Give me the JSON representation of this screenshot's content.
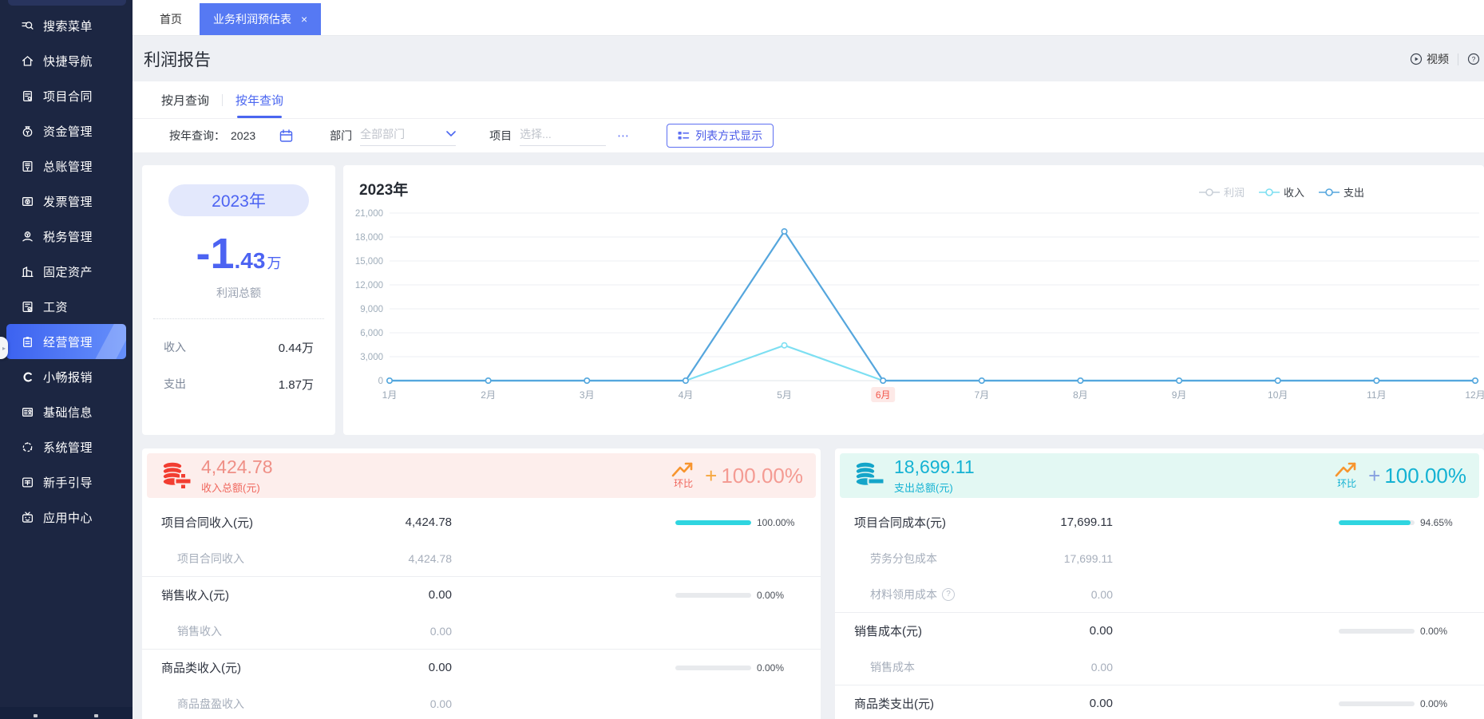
{
  "tabbar": {
    "home_tab": "首页",
    "active_tab": "业务利润预估表",
    "close": "×"
  },
  "page": {
    "title": "利润报告",
    "video_label": "视频",
    "help_label": "帮"
  },
  "sidebar": {
    "active": "经营管理",
    "items": [
      {
        "label": "搜索菜单",
        "icon": "search-menu-icon"
      },
      {
        "label": "快捷导航",
        "icon": "quick-nav-icon"
      },
      {
        "label": "项目合同",
        "icon": "project-contract-icon"
      },
      {
        "label": "资金管理",
        "icon": "funds-icon"
      },
      {
        "label": "总账管理",
        "icon": "general-ledger-icon"
      },
      {
        "label": "发票管理",
        "icon": "invoice-icon"
      },
      {
        "label": "税务管理",
        "icon": "tax-icon"
      },
      {
        "label": "固定资产",
        "icon": "fixed-assets-icon"
      },
      {
        "label": "工资",
        "icon": "salary-icon"
      },
      {
        "label": "经营管理",
        "icon": "operations-icon"
      },
      {
        "label": "小畅报销",
        "icon": "expense-claim-icon"
      },
      {
        "label": "基础信息",
        "icon": "basic-info-icon"
      },
      {
        "label": "系统管理",
        "icon": "system-icon"
      },
      {
        "label": "新手引导",
        "icon": "newbie-guide-icon"
      },
      {
        "label": "应用中心",
        "icon": "app-center-icon"
      }
    ]
  },
  "query_tabs": {
    "monthly": "按月查询",
    "yearly": "按年查询",
    "active": "按年查询"
  },
  "filters": {
    "year_label": "按年查询：",
    "year_value": "2023",
    "dept_label": "部门",
    "dept_placeholder": "全部部门",
    "project_label": "项目",
    "project_placeholder": "选择...",
    "project_more": "⋯",
    "list_view_button": "列表方式显示"
  },
  "summary": {
    "year_pill": "2023年",
    "profit_value": "-1",
    "profit_decimal": ".43",
    "profit_unit": "万",
    "profit_label": "利润总额",
    "income_label": "收入",
    "income_value": "0.44万",
    "expense_label": "支出",
    "expense_value": "1.87万"
  },
  "chart_data": {
    "type": "line",
    "title": "2023年",
    "categories": [
      "1月",
      "2月",
      "3月",
      "4月",
      "5月",
      "6月",
      "7月",
      "8月",
      "9月",
      "10月",
      "11月",
      "12月"
    ],
    "highlight_category": "6月",
    "highlight_color": "#f2584c",
    "xlabel": "",
    "ylabel": "",
    "ylim": [
      0,
      21000
    ],
    "y_ticks": [
      0,
      3000,
      6000,
      9000,
      12000,
      15000,
      18000,
      21000
    ],
    "grid": true,
    "legend_position": "top-right",
    "series": [
      {
        "name": "利润",
        "color": "#c9d0d8",
        "disabled": true,
        "values": null
      },
      {
        "name": "收入",
        "color": "#7ddff2",
        "disabled": false,
        "values": [
          0,
          0,
          0,
          0,
          4424.78,
          0,
          0,
          0,
          0,
          0,
          0,
          0
        ]
      },
      {
        "name": "支出",
        "color": "#55a6dd",
        "disabled": false,
        "values": [
          0,
          0,
          0,
          0,
          18699.11,
          0,
          0,
          0,
          0,
          0,
          0,
          0
        ]
      }
    ]
  },
  "income_card": {
    "icon": "coins-plus-icon",
    "trend_icon": "trend-up-icon",
    "total": "4,424.78",
    "label": "收入总额(元)",
    "ratio_label": "环比",
    "ratio_sign": "+",
    "ratio_value": "100.00%",
    "accent": "#f0685e",
    "bg": "#fdeeec",
    "bar_color": "#2fd5e0",
    "rows": [
      {
        "label": "项目合同收入(元)",
        "value": "4,424.78",
        "percent": "100.00%",
        "percent_value": 100
      },
      {
        "label": "项目合同收入",
        "value": "4,424.78",
        "sub": true
      },
      {
        "label": "销售收入(元)",
        "value": "0.00",
        "percent": "0.00%",
        "percent_value": 0
      },
      {
        "label": "销售收入",
        "value": "0.00",
        "sub": true
      },
      {
        "label": "商品类收入(元)",
        "value": "0.00",
        "percent": "0.00%",
        "percent_value": 0
      },
      {
        "label": "商品盘盈收入",
        "value": "0.00",
        "sub": true
      }
    ]
  },
  "expense_card": {
    "icon": "coins-minus-icon",
    "trend_icon": "trend-up-icon",
    "total": "18,699.11",
    "label": "支出总额(元)",
    "ratio_label": "环比",
    "ratio_sign": "+",
    "ratio_value": "100.00%",
    "accent": "#14b2d3",
    "bg": "#e3f8f3",
    "bar_color": "#2fd5e0",
    "rows": [
      {
        "label": "项目合同成本(元)",
        "value": "17,699.11",
        "percent": "94.65%",
        "percent_value": 94.65
      },
      {
        "label": "劳务分包成本",
        "value": "17,699.11",
        "sub": true
      },
      {
        "label": "材料领用成本",
        "value": "0.00",
        "sub": true,
        "info": true
      },
      {
        "label": "销售成本(元)",
        "value": "0.00",
        "percent": "0.00%",
        "percent_value": 0
      },
      {
        "label": "销售成本",
        "value": "0.00",
        "sub": true
      },
      {
        "label": "商品类支出(元)",
        "value": "0.00",
        "percent": "0.00%",
        "percent_value": 0
      }
    ]
  }
}
